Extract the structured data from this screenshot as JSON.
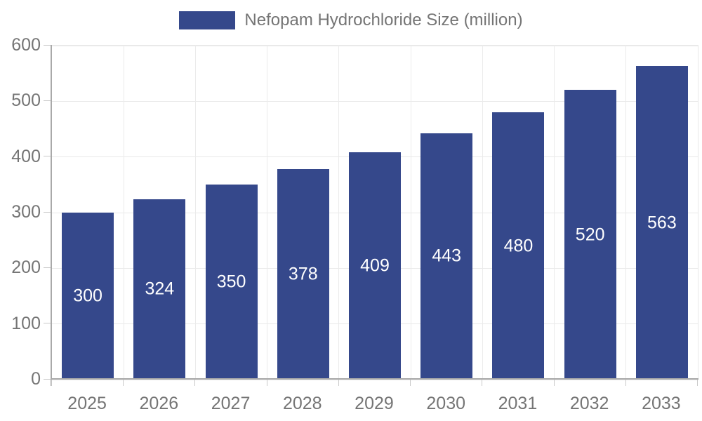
{
  "chart_data": {
    "type": "bar",
    "title": "",
    "legend_label": "Nefopam Hydrochloride Size (million)",
    "legend_position": "top-center",
    "categories": [
      "2025",
      "2026",
      "2027",
      "2028",
      "2029",
      "2030",
      "2031",
      "2032",
      "2033"
    ],
    "values": [
      300,
      324,
      350,
      378,
      409,
      443,
      480,
      520,
      563
    ],
    "xlabel": "",
    "ylabel": "",
    "ylim": [
      0,
      600
    ],
    "yticks": [
      0,
      100,
      200,
      300,
      400,
      500,
      600
    ],
    "grid": true,
    "value_labels_position": "inside-center"
  },
  "colors": {
    "bar": "#35488b",
    "axis_line": "#a9a9a9",
    "grid_line": "#e9e9e9",
    "tick_mark": "#c9c9c9",
    "tick_label": "#757575",
    "legend_text": "#757575",
    "value_label": "#ffffff",
    "background": "#ffffff"
  }
}
